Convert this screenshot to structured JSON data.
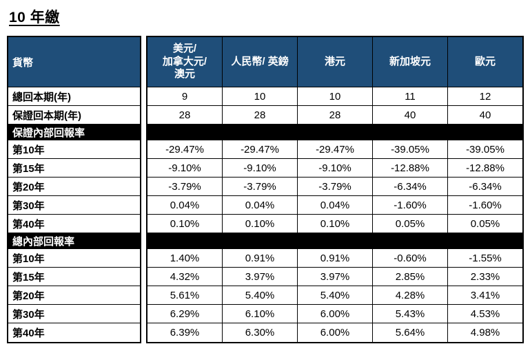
{
  "title": "10 年繳",
  "colors": {
    "header_bg": "#1F4E79",
    "header_text": "#FFFFFF",
    "section_bg": "#000000",
    "section_text": "#FFFFFF",
    "border": "#000000"
  },
  "table": {
    "corner_label": "貨幣",
    "columns": [
      "美元/\n加拿大元/\n澳元",
      "人民幣/ 英鎊",
      "港元",
      "新加坡元",
      "歐元"
    ],
    "rows": [
      {
        "type": "data",
        "label": "總回本期(年)",
        "values": [
          "9",
          "10",
          "10",
          "11",
          "12"
        ]
      },
      {
        "type": "data",
        "label": "保證回本期(年)",
        "values": [
          "28",
          "28",
          "28",
          "40",
          "40"
        ]
      },
      {
        "type": "section",
        "label": "保證內部回報率"
      },
      {
        "type": "data",
        "label": "第10年",
        "values": [
          "-29.47%",
          "-29.47%",
          "-29.47%",
          "-39.05%",
          "-39.05%"
        ]
      },
      {
        "type": "data",
        "label": "第15年",
        "values": [
          "-9.10%",
          "-9.10%",
          "-9.10%",
          "-12.88%",
          "-12.88%"
        ]
      },
      {
        "type": "data",
        "label": "第20年",
        "values": [
          "-3.79%",
          "-3.79%",
          "-3.79%",
          "-6.34%",
          "-6.34%"
        ]
      },
      {
        "type": "data",
        "label": "第30年",
        "values": [
          "0.04%",
          "0.04%",
          "0.04%",
          "-1.60%",
          "-1.60%"
        ]
      },
      {
        "type": "data",
        "label": "第40年",
        "values": [
          "0.10%",
          "0.10%",
          "0.10%",
          "0.05%",
          "0.05%"
        ]
      },
      {
        "type": "section",
        "label": "總內部回報率"
      },
      {
        "type": "data",
        "label": "第10年",
        "values": [
          "1.40%",
          "0.91%",
          "0.91%",
          "-0.60%",
          "-1.55%"
        ]
      },
      {
        "type": "data",
        "label": "第15年",
        "values": [
          "4.32%",
          "3.97%",
          "3.97%",
          "2.85%",
          "2.33%"
        ]
      },
      {
        "type": "data",
        "label": "第20年",
        "values": [
          "5.61%",
          "5.40%",
          "5.40%",
          "4.28%",
          "3.41%"
        ]
      },
      {
        "type": "data",
        "label": "第30年",
        "values": [
          "6.29%",
          "6.10%",
          "6.00%",
          "5.43%",
          "4.53%"
        ]
      },
      {
        "type": "data",
        "label": "第40年",
        "values": [
          "6.39%",
          "6.30%",
          "6.00%",
          "5.64%",
          "4.98%"
        ]
      }
    ]
  }
}
